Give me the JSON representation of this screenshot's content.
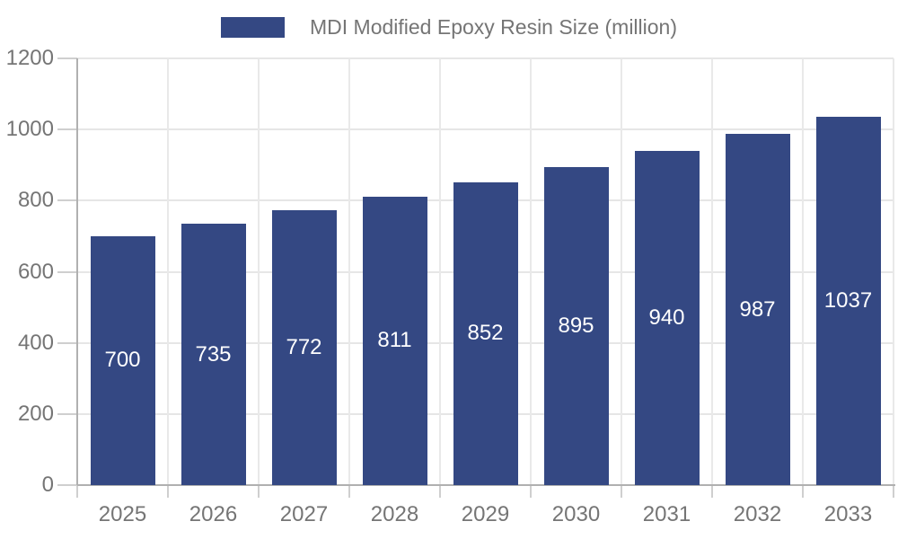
{
  "legend": {
    "label": "MDI Modified Epoxy Resin Size (million)"
  },
  "chart_data": {
    "type": "bar",
    "title": "MDI Modified Epoxy Resin Size (million)",
    "series_name": "MDI Modified Epoxy Resin Size (million)",
    "categories": [
      "2025",
      "2026",
      "2027",
      "2028",
      "2029",
      "2030",
      "2031",
      "2032",
      "2033"
    ],
    "values": [
      700,
      735,
      772,
      811,
      852,
      895,
      940,
      987,
      1037
    ],
    "xlabel": "",
    "ylabel": "",
    "ylim": [
      0,
      1200
    ],
    "yticks": [
      0,
      200,
      400,
      600,
      800,
      1000,
      1200
    ],
    "grid": true,
    "legend_position": "top-center",
    "value_labels": "inside-center",
    "colors": {
      "bar": "#344883",
      "value_label": "#ffffff",
      "axis_text": "#757575",
      "gridline": "#e6e6e6",
      "axis_line": "#b0b0b0",
      "background": "#ffffff"
    }
  }
}
